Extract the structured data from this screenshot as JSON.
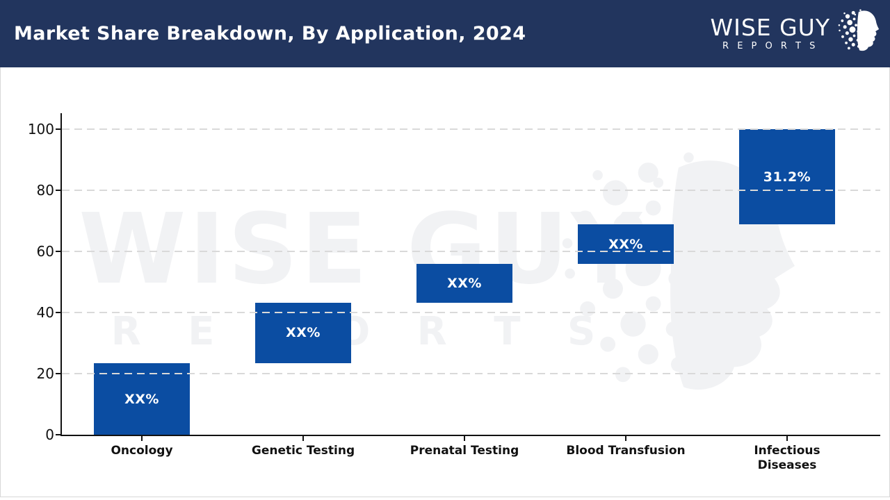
{
  "header": {
    "title": "Market Share Breakdown, By Application, 2024",
    "logo": {
      "line1": "WISE GUY",
      "line2": "R E P O R T S"
    }
  },
  "watermark": {
    "line1": "WISE GUY",
    "line2": "R E P O R T S"
  },
  "colors": {
    "header_bg": "#22355e",
    "bar": "#0b4da2",
    "grid": "#d9d9d9",
    "axis": "#111111",
    "bar_label": "#ffffff",
    "watermark": "#f1f2f4"
  },
  "chart_data": {
    "type": "bar",
    "subtype": "waterfall",
    "title": "Market Share Breakdown, By Application, 2024",
    "categories": [
      "Oncology",
      "Genetic Testing",
      "Prenatal Testing",
      "Blood Transfusion",
      "Infectious\nDiseases"
    ],
    "segments": [
      [
        0,
        23.4
      ],
      [
        23.4,
        43.2
      ],
      [
        43.2,
        55.9
      ],
      [
        55.9,
        68.8
      ],
      [
        68.8,
        100
      ]
    ],
    "values": [
      23.4,
      19.8,
      12.7,
      12.9,
      31.2
    ],
    "bar_labels": [
      "XX%",
      "XX%",
      "XX%",
      "XX%",
      "31.2%"
    ],
    "xlabel": "",
    "ylabel": "",
    "ylim": [
      0,
      100
    ],
    "yticks": [
      0,
      20,
      40,
      60,
      80,
      100
    ],
    "grid": "horizontal-dashed, drawn above bars",
    "legend": "none"
  }
}
